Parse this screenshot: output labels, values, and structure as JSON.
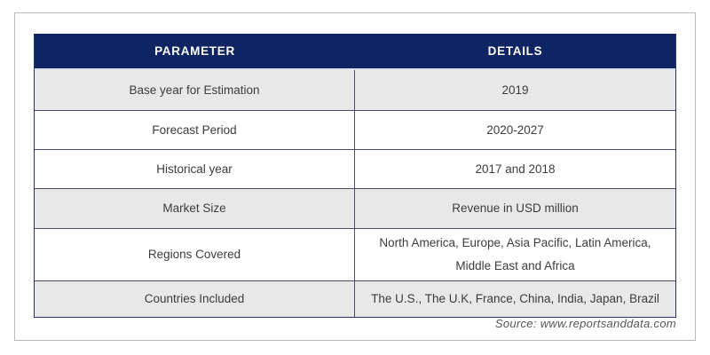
{
  "table": {
    "headers": [
      "PARAMETER",
      "DETAILS"
    ],
    "rows": [
      {
        "parameter": "Base year for Estimation",
        "details": "2019"
      },
      {
        "parameter": "Forecast Period",
        "details": "2020-2027"
      },
      {
        "parameter": "Historical year",
        "details": "2017 and 2018"
      },
      {
        "parameter": "Market Size",
        "details": "Revenue in USD million"
      },
      {
        "parameter": "Regions Covered",
        "details": "North America, Europe, Asia Pacific, Latin America, Middle East and Africa"
      },
      {
        "parameter": "Countries Included",
        "details": "The U.S., The  U.K, France, China, India, Japan, Brazil"
      }
    ]
  },
  "source": {
    "text": "Source: www.reportsanddata.com"
  },
  "colors": {
    "header_bg": "#0f2563",
    "header_text": "#ffffff",
    "shaded_row_bg": "#e8e8e8",
    "table_border": "#26346a",
    "column_divider": "#3b4f88",
    "row_divider": "#474d6d",
    "page_border": "#b9b9b9",
    "cell_text": "#3c3c3c",
    "source_text": "#565656"
  },
  "chart_data": {
    "type": "table",
    "columns": [
      "PARAMETER",
      "DETAILS"
    ],
    "rows": [
      [
        "Base year for Estimation",
        "2019"
      ],
      [
        "Forecast Period",
        "2020-2027"
      ],
      [
        "Historical year",
        "2017 and 2018"
      ],
      [
        "Market Size",
        "Revenue in USD million"
      ],
      [
        "Regions Covered",
        "North America, Europe, Asia Pacific, Latin America, Middle East and Africa"
      ],
      [
        "Countries Included",
        "The U.S., The  U.K, France, China, India, Japan, Brazil"
      ]
    ],
    "title": "",
    "source": "Source: www.reportsanddata.com",
    "layout_hints": {
      "shaded_rows": [
        0,
        3,
        5
      ],
      "header_style": "navy-bar-white-text",
      "two_line_cells": [
        "Regions Covered details"
      ]
    }
  }
}
